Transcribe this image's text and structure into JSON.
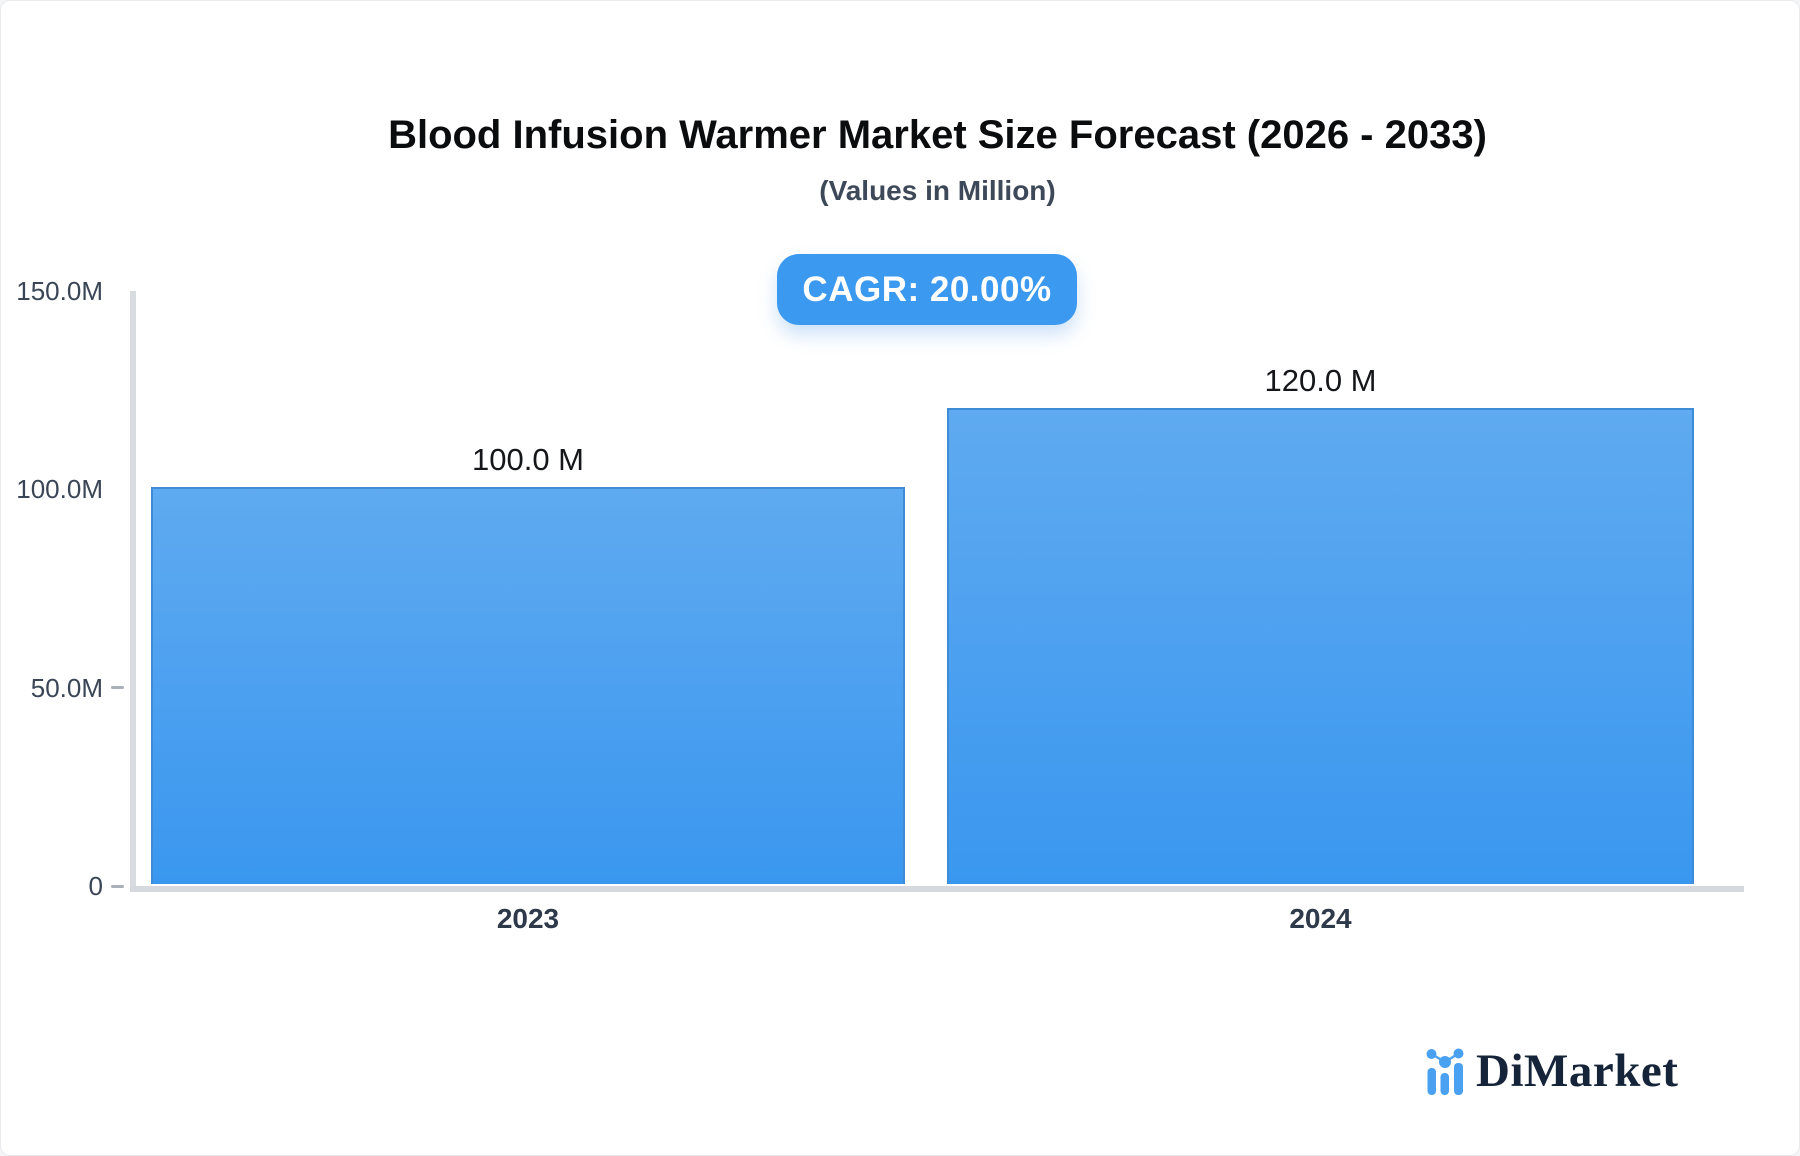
{
  "chart_data": {
    "type": "bar",
    "title": "Blood Infusion Warmer Market Size Forecast (2026 - 2033)",
    "subtitle": "(Values in Million)",
    "categories": [
      "2023",
      "2024"
    ],
    "values": [
      100.0,
      120.0
    ],
    "value_labels": [
      "100.0 M",
      "120.0 M"
    ],
    "xlabel": "",
    "ylabel": "",
    "ylim": [
      0,
      150
    ],
    "y_ticks": [
      "150.0M",
      "100.0M",
      "50.0M",
      "0"
    ],
    "grid": false,
    "legend": false,
    "annotations": [
      "CAGR: 20.00%"
    ]
  },
  "badge": {
    "label": "CAGR: 20.00%",
    "color": "#3b99f0"
  },
  "branding": {
    "logo_text": "DiMarket"
  },
  "colors": {
    "bar_fill_top": "#5faaf0",
    "bar_fill_bottom": "#3a97ef",
    "bar_stroke": "#3e8bd6",
    "axis_line": "#d8dbe0",
    "badge_bg": "#3b99f0",
    "badge_text": "#ffffff",
    "tick_text": "#3a4656",
    "logo_navy": "#16243a",
    "logo_blue": "#4aa1f1"
  }
}
